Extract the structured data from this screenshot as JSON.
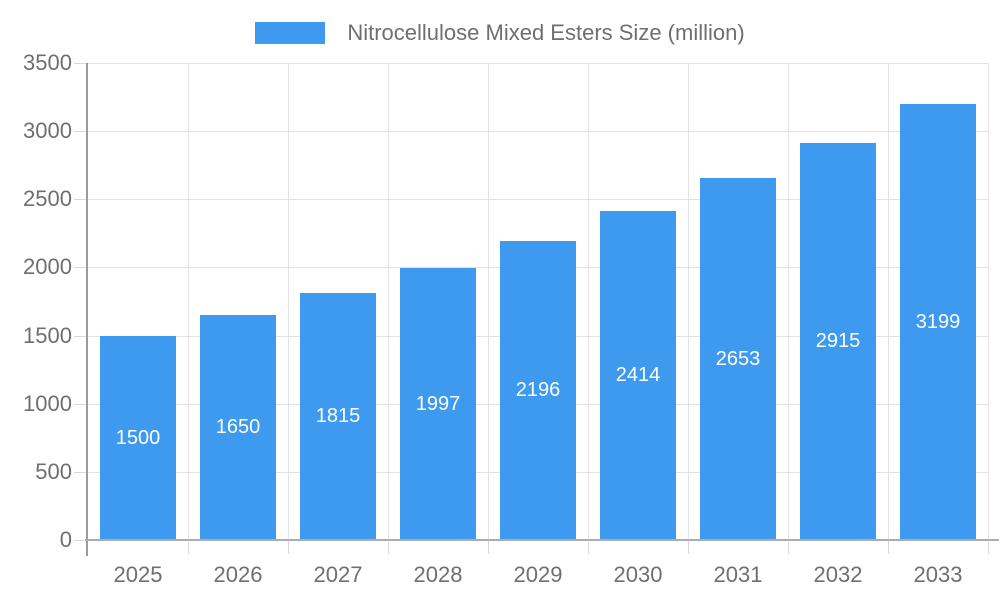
{
  "chart_data": {
    "type": "bar",
    "title": "",
    "legend_entries": [
      "Nitrocellulose Mixed Esters Size (million)"
    ],
    "legend_position": "top-center",
    "categories": [
      "2025",
      "2026",
      "2027",
      "2028",
      "2029",
      "2030",
      "2031",
      "2032",
      "2033"
    ],
    "series": [
      {
        "name": "Nitrocellulose Mixed Esters Size (million)",
        "values": [
          1500,
          1650,
          1815,
          1997,
          2196,
          2414,
          2653,
          2915,
          3199
        ]
      }
    ],
    "value_labels_shown": true,
    "xlabel": "",
    "ylabel": "",
    "ylim": [
      0,
      3500
    ],
    "yticks": [
      0,
      500,
      1000,
      1500,
      2000,
      2500,
      3000,
      3500
    ],
    "grid": "horizontal lines at y ticks and vertical lines at category boundaries",
    "colors": {
      "bar": "#3D9AEE",
      "grid": "#E3E3E3",
      "tick": "#D9D9D9",
      "y_axis_line": "#9B9B9B",
      "x_axis_line": "#ACACAC",
      "axis_text": "#6F6F6F",
      "legend_text": "#6F6F6F",
      "value_text": "#FFFFFF",
      "background": "#FFFFFF"
    }
  }
}
